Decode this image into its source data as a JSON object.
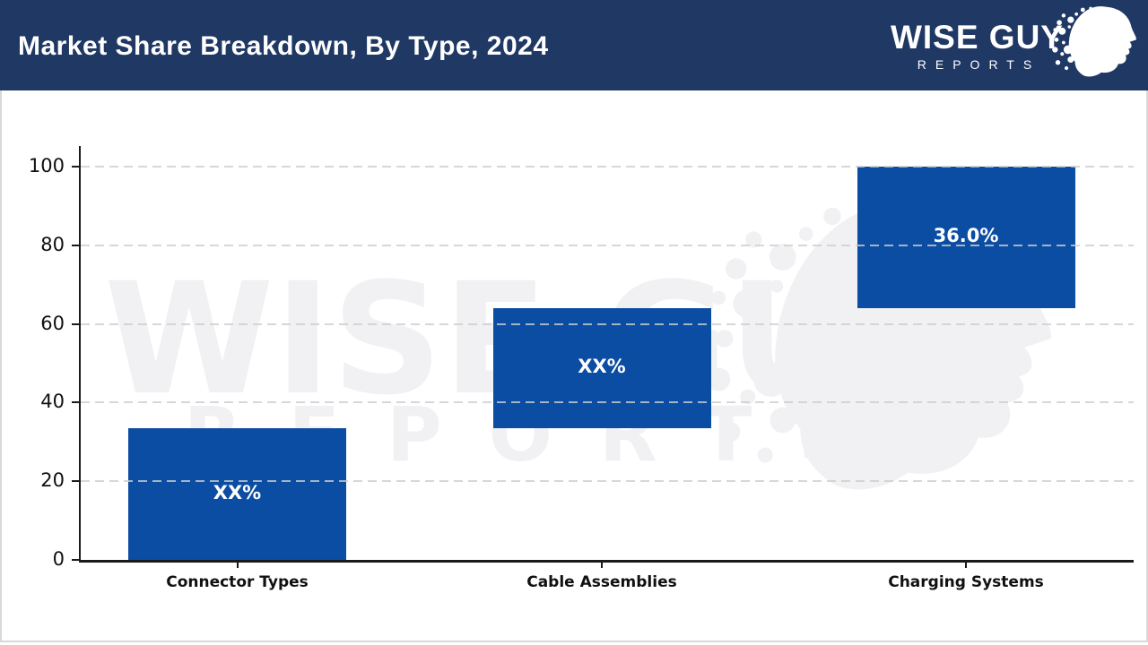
{
  "header": {
    "title": "Market Share Breakdown, By Type, 2024",
    "bg_color": "#1f3864",
    "logo": {
      "line1": "WISE GUY",
      "line2": "REPORTS"
    }
  },
  "watermark": {
    "line1": "WISE GUY",
    "line2": "REPORTS"
  },
  "chart_data": {
    "type": "bar",
    "subtype": "waterfall-breakdown",
    "title": "Market Share Breakdown, By Type, 2024",
    "categories": [
      "Connector Types",
      "Cable Assemblies",
      "Charging Systems"
    ],
    "bars": [
      {
        "category": "Connector Types",
        "start": 0,
        "end": 33.4,
        "value_label": "XX%"
      },
      {
        "category": "Cable Assemblies",
        "start": 33.4,
        "end": 64.0,
        "value_label": "XX%"
      },
      {
        "category": "Charging Systems",
        "start": 64.0,
        "end": 100.0,
        "value_label": "36.0%"
      }
    ],
    "xlabel": "",
    "ylabel": "",
    "ylim": [
      0,
      105
    ],
    "yticks": [
      0,
      20,
      40,
      60,
      80,
      100
    ],
    "legend": "none",
    "grid": "horizontal-dashed-drawn-over-bars",
    "colors": {
      "bar": "#0b4da2",
      "bar_label": "#ffffff",
      "grid": "#cdcdcd",
      "axis": "#1a1a1a",
      "tick_label": "#111111",
      "category_label": "#111111",
      "watermark": "#f1f1f4"
    }
  }
}
